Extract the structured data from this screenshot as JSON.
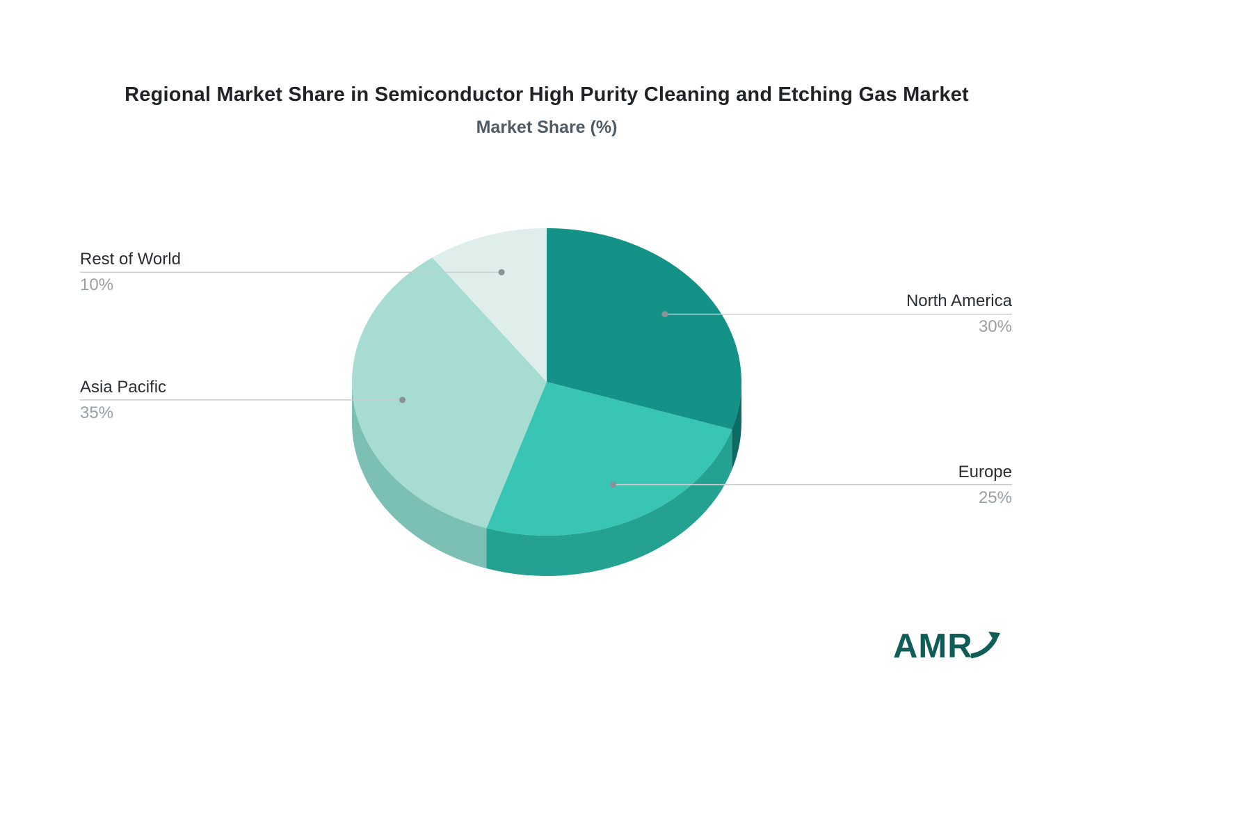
{
  "chart_data": {
    "type": "pie",
    "title": "Regional Market Share in Semiconductor High Purity Cleaning and Etching Gas Market",
    "subtitle": "Market Share (%)",
    "unit": "%",
    "style": "3d-pie",
    "start_angle_deg": -90,
    "direction": "clockwise",
    "legend": "none",
    "slices": [
      {
        "label": "North America",
        "value": 30,
        "display": "30%",
        "color": "#159287",
        "side_color": "#0d6b63"
      },
      {
        "label": "Europe",
        "value": 25,
        "display": "25%",
        "color": "#38c5b4",
        "side_color": "#25a192"
      },
      {
        "label": "Asia Pacific",
        "value": 35,
        "display": "35%",
        "color": "#a6dcd2",
        "side_color": "#7cc0b5"
      },
      {
        "label": "Rest of World",
        "value": 10,
        "display": "10%",
        "color": "#dfeeeb",
        "side_color": "#b9d8d3"
      }
    ],
    "colors": {
      "label_text": "#2b2f33",
      "percent_text": "#98a0a6",
      "leader_line": "#c8cdd0",
      "leader_dot": "#8b9196"
    }
  },
  "logo": {
    "text": "AMR"
  }
}
